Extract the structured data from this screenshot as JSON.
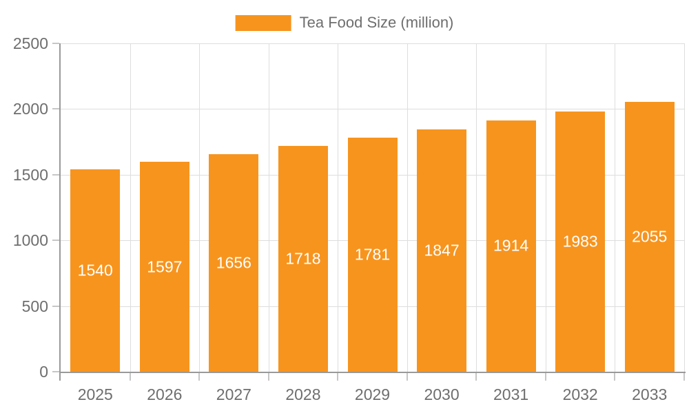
{
  "legend": {
    "label": "Tea Food Size (million)",
    "position": "top"
  },
  "colors": {
    "bar": "#F7941E",
    "axis_line": "#999999",
    "tick_line": "#C6C6C6",
    "grid_line": "#DDDDDD",
    "label_text": "#6E6E6E",
    "bar_label_text": "#FFFFFF",
    "background": "#FFFFFF"
  },
  "chart_data": {
    "type": "bar",
    "title": "",
    "series_name": "Tea Food Size (million)",
    "categories": [
      "2025",
      "2026",
      "2027",
      "2028",
      "2029",
      "2030",
      "2031",
      "2032",
      "2033"
    ],
    "values": [
      1540,
      1597,
      1656,
      1718,
      1781,
      1847,
      1914,
      1983,
      2055
    ],
    "xlabel": "",
    "ylabel": "",
    "ylim": [
      0,
      2500
    ],
    "yticks": [
      0,
      500,
      1000,
      1500,
      2000,
      2500
    ],
    "grid": true,
    "legend_position": "top",
    "bar_value_labels": "inside-middle"
  }
}
